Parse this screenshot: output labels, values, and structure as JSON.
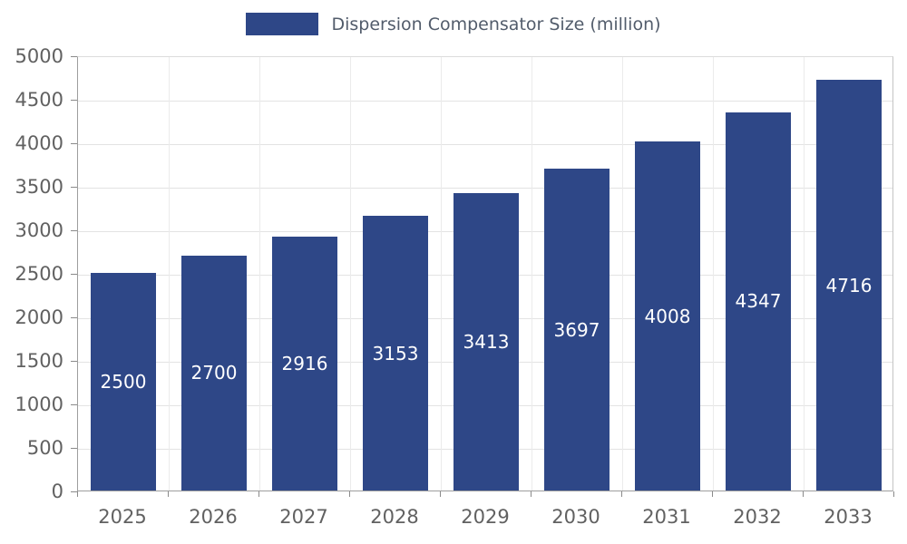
{
  "chart_data": {
    "type": "bar",
    "title": "Dispersion Compensator Size (million)",
    "categories": [
      "2025",
      "2026",
      "2027",
      "2028",
      "2029",
      "2030",
      "2031",
      "2032",
      "2033"
    ],
    "values": [
      2500,
      2700,
      2916,
      3153,
      3413,
      3697,
      4008,
      4347,
      4716
    ],
    "xlabel": "",
    "ylabel": "",
    "ylim": [
      0,
      5000
    ],
    "ytick_step": 500,
    "grid": true,
    "legend_position": "top",
    "bar_color": "#2e4787",
    "bar_label_color": "#ffffff"
  }
}
